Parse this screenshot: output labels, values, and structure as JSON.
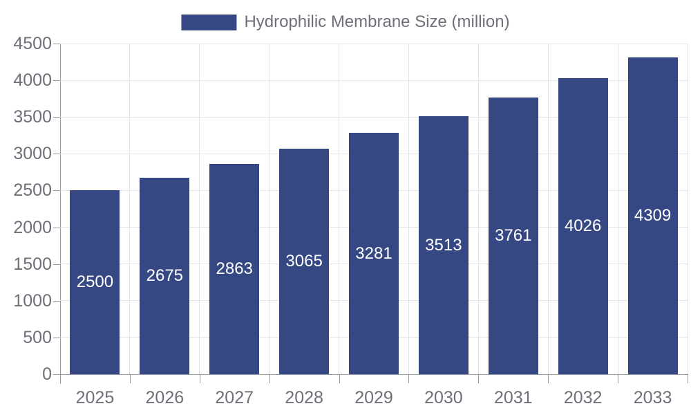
{
  "chart_data": {
    "type": "bar",
    "title": "",
    "legend": {
      "label": "Hydrophilic Membrane Size (million)",
      "position": "top-center"
    },
    "categories": [
      "2025",
      "2026",
      "2027",
      "2028",
      "2029",
      "2030",
      "2031",
      "2032",
      "2033"
    ],
    "values": [
      2500,
      2675,
      2863,
      3065,
      3281,
      3513,
      3761,
      4026,
      4309
    ],
    "xlabel": "",
    "ylabel": "",
    "ylim": [
      0,
      4500
    ],
    "yticks": [
      0,
      500,
      1000,
      1500,
      2000,
      2500,
      3000,
      3500,
      4000,
      4500
    ],
    "grid": true,
    "bar_labels_inside": true,
    "colors": {
      "bar": "#364884",
      "bar_label": "#ffffff",
      "axis_text": "#6e7079",
      "axis_line": "#98999c",
      "gridline": "#e3e3e7",
      "background": "#ffffff"
    }
  }
}
